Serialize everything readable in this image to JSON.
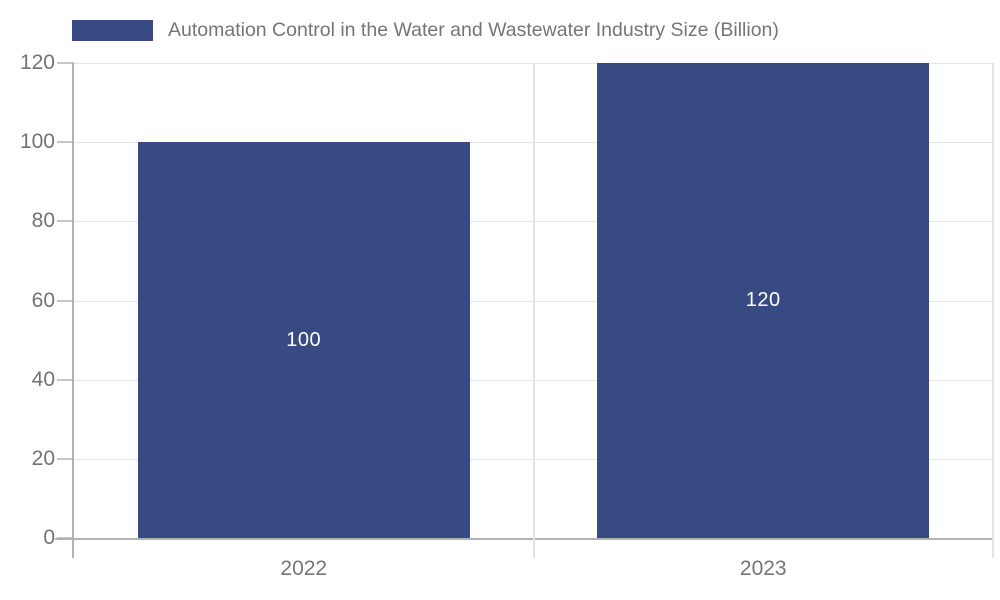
{
  "chart_data": {
    "type": "bar",
    "title": "Automation Control in the Water and Wastewater Industry Size (Billion)",
    "categories": [
      "2022",
      "2023"
    ],
    "values": [
      100,
      120
    ],
    "value_labels": [
      "100",
      "120"
    ],
    "series_name": "Automation Control in the Water and Wastewater Industry Size (Billion)",
    "xlabel": "",
    "ylabel": "",
    "ylim": [
      0,
      120
    ],
    "yticks": [
      0,
      20,
      40,
      60,
      80,
      100,
      120
    ],
    "grid": "horizontal gridlines on, vertical separators at category boundaries",
    "legend_position": "top-left",
    "bar_color": "#374a82",
    "bar_label_color": "#ffffff",
    "axis_color": "#b2b2b2",
    "gridline_color": "#e4e4e4",
    "text_color": "#757575"
  }
}
